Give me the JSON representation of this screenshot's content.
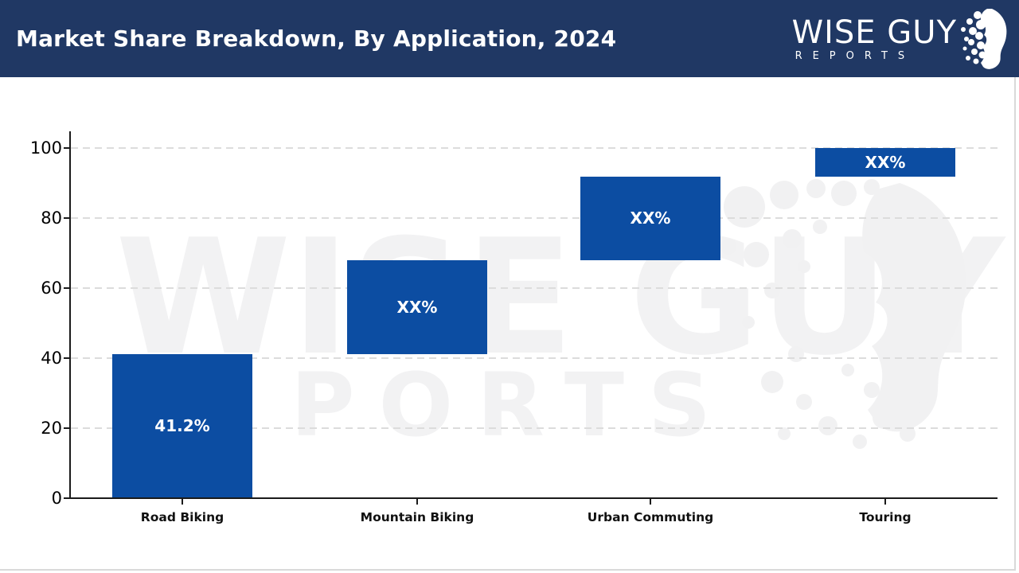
{
  "header": {
    "title": "Market Share Breakdown, By Application, 2024",
    "bg_color": "#203864",
    "logo": {
      "line1": "WISE GUY",
      "line2": "REPORTS"
    }
  },
  "watermark": {
    "line1": "WISE GUY",
    "line2": "PORTS"
  },
  "chart_data": {
    "type": "bar",
    "subtype": "waterfall",
    "title": "Market Share Breakdown, By Application, 2024",
    "categories": [
      "Road Biking",
      "Mountain Biking",
      "Urban Commuting",
      "Touring"
    ],
    "segments": [
      {
        "category": "Road Biking",
        "start": 0,
        "end": 41.2,
        "value": 41.2,
        "label": "41.2%"
      },
      {
        "category": "Mountain Biking",
        "start": 41.2,
        "end": 68.0,
        "value": 26.8,
        "label": "XX%"
      },
      {
        "category": "Urban Commuting",
        "start": 68.0,
        "end": 91.8,
        "value": 23.8,
        "label": "XX%"
      },
      {
        "category": "Touring",
        "start": 91.8,
        "end": 100.0,
        "value": 8.2,
        "label": "XX%"
      }
    ],
    "ylim": [
      0,
      100
    ],
    "yticks": [
      0,
      20,
      40,
      60,
      80,
      100
    ],
    "xlabel": "",
    "ylabel": "",
    "bar_color": "#0c4da2",
    "grid": "horizontal-dashed",
    "legend": "none"
  }
}
